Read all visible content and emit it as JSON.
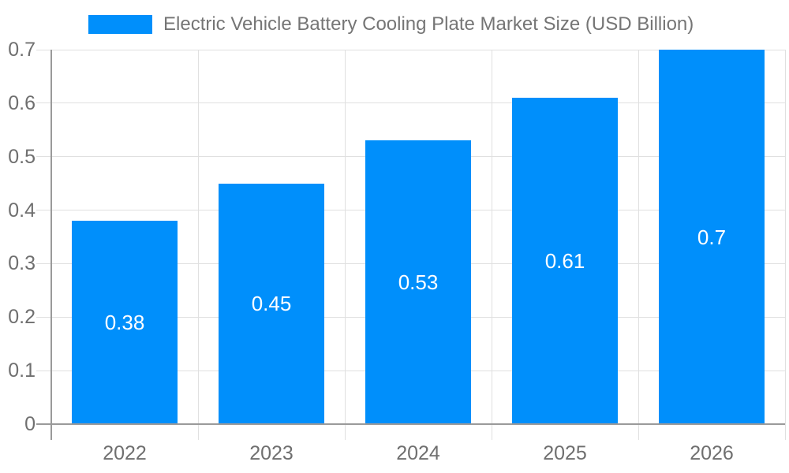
{
  "legend": {
    "label": "Electric Vehicle Battery Cooling Plate Market Size (USD Billion)"
  },
  "colors": {
    "accent": "#008FFB",
    "grid": "#e0e0e0",
    "axis": "#9a9a9a",
    "tick_text": "#6f6f6f",
    "title_text": "#757575",
    "bar_label_text": "#ffffff",
    "background": "#ffffff"
  },
  "chart_data": {
    "type": "bar",
    "title": "Electric Vehicle Battery Cooling Plate Market Size (USD Billion)",
    "categories": [
      "2022",
      "2023",
      "2024",
      "2025",
      "2026"
    ],
    "values": [
      0.38,
      0.45,
      0.53,
      0.61,
      0.7
    ],
    "value_labels": [
      "0.38",
      "0.45",
      "0.53",
      "0.61",
      "0.7"
    ],
    "series_name": "Electric Vehicle Battery Cooling Plate Market Size (USD Billion)",
    "xlabel": "",
    "ylabel": "",
    "ylim": [
      0,
      0.7
    ],
    "ytick_labels": [
      "0",
      "0.1",
      "0.2",
      "0.3",
      "0.4",
      "0.5",
      "0.6",
      "0.7"
    ],
    "grid": true,
    "legend_position": "top",
    "bar_color": "#008FFB",
    "value_label_position": "center"
  }
}
